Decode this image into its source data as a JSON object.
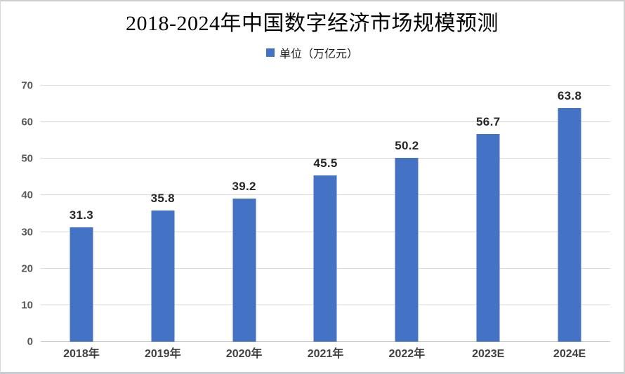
{
  "chart_data": {
    "type": "bar",
    "title": "2018-2024年中国数字经济市场规模预测",
    "legend": [
      {
        "label": "单位（万亿元）",
        "color": "#4472c4"
      }
    ],
    "legend_position": "top",
    "categories": [
      "2018年",
      "2019年",
      "2020年",
      "2021年",
      "2022年",
      "2023E",
      "2024E"
    ],
    "values": [
      31.3,
      35.8,
      39.2,
      45.5,
      50.2,
      56.7,
      63.8
    ],
    "data_labels": [
      "31.3",
      "35.8",
      "39.2",
      "45.5",
      "50.2",
      "56.7",
      "63.8"
    ],
    "xlabel": "",
    "ylabel": "",
    "ylim": [
      0,
      70
    ],
    "yticks": [
      0,
      10,
      20,
      30,
      40,
      50,
      60,
      70
    ],
    "grid": true,
    "bar_color": "#4472c4",
    "gridline_color": "#d9d9d9",
    "axis_line_color": "#c6c6c6",
    "y_tick_label_color": "#595959",
    "category_label_color": "#404040",
    "data_label_color": "#262626",
    "background_color": "#ffffff",
    "border_color": "#cfcfcf"
  }
}
